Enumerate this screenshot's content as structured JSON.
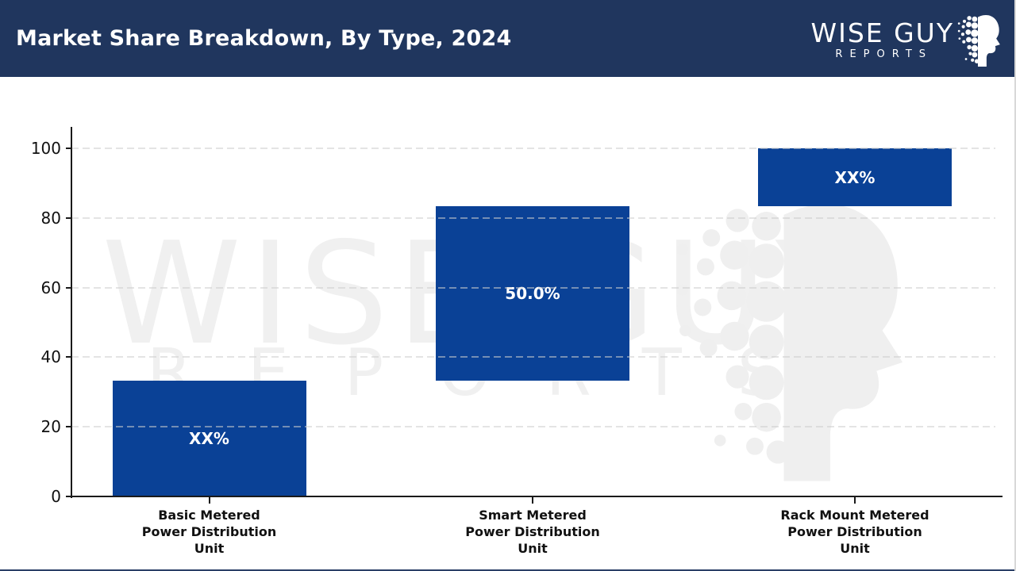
{
  "header": {
    "title": "Market Share Breakdown, By Type, 2024",
    "logo": {
      "line1": "WISE GUY",
      "line2": "REPORTS"
    }
  },
  "watermark": {
    "line1": "WISE GUY",
    "line2": "REPORTS"
  },
  "chart_data": {
    "type": "bar",
    "variant": "stacked-waterfall",
    "title": "Market Share Breakdown, By Type, 2024",
    "categories": [
      "Basic Metered\nPower Distribution\nUnit",
      "Smart Metered\nPower Distribution\nUnit",
      "Rack Mount Metered\nPower Distribution\nUnit"
    ],
    "bars": [
      {
        "start": 0,
        "end": 33.3,
        "label": "XX%"
      },
      {
        "start": 33.3,
        "end": 83.3,
        "label": "50.0%"
      },
      {
        "start": 83.3,
        "end": 100,
        "label": "XX%"
      }
    ],
    "ylim": [
      0,
      100
    ],
    "yticks": [
      0,
      20,
      40,
      60,
      80,
      100
    ],
    "grid": {
      "horizontal": true,
      "style": "dashed"
    },
    "legend": "none",
    "colors": {
      "bar": "#0a4196",
      "value_label": "#ffffff",
      "header_bg": "#20365e",
      "watermark": "#f0f0f0",
      "grid": "#d0d0d0",
      "axis": "#1a1a1a"
    }
  }
}
